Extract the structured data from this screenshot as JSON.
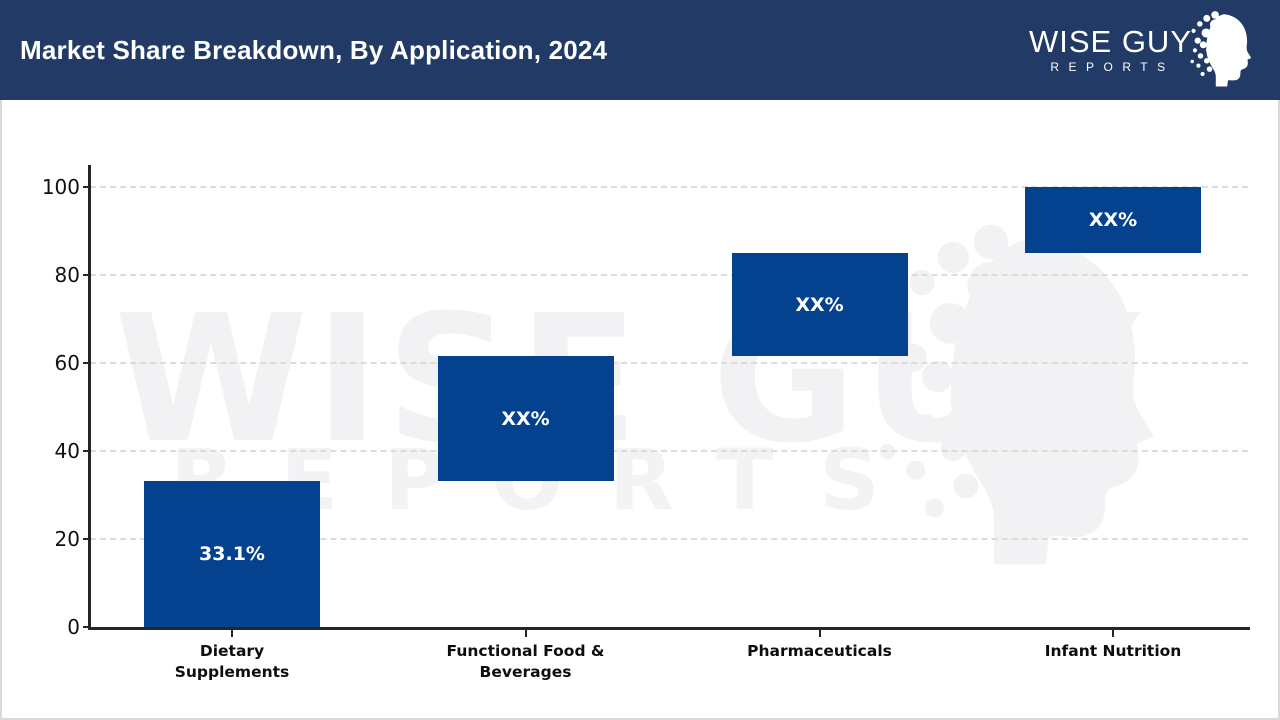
{
  "header": {
    "title": "Market Share Breakdown, By Application, 2024",
    "bg_color": "#213a66",
    "logo": {
      "name": "WISE GUY",
      "sub": "REPORTS"
    }
  },
  "watermark": {
    "line1": "WISE GUY",
    "line2": "REPORTS"
  },
  "chart_data": {
    "type": "bar",
    "subtype": "floating-segment-waterfall",
    "title": "Market Share Breakdown, By Application, 2024",
    "categories": [
      [
        "Dietary",
        "Supplements"
      ],
      [
        "Functional Food &",
        "Beverages"
      ],
      [
        "Pharmaceuticals"
      ],
      [
        "Infant Nutrition"
      ]
    ],
    "segments": [
      {
        "category": "Dietary Supplements",
        "start": 0,
        "end": 33.1,
        "label": "33.1%"
      },
      {
        "category": "Functional Food & Beverages",
        "start": 33.1,
        "end": 61.5,
        "label": "XX%"
      },
      {
        "category": "Pharmaceuticals",
        "start": 61.5,
        "end": 84.9,
        "label": "XX%"
      },
      {
        "category": "Infant Nutrition",
        "start": 84.9,
        "end": 100,
        "label": "XX%"
      }
    ],
    "yticks": [
      0,
      20,
      40,
      60,
      80,
      100
    ],
    "ylim": [
      0,
      105
    ],
    "xlabel": "",
    "ylabel": "",
    "bar_color": "#04428f",
    "bar_label_color": "#ffffff",
    "grid": {
      "axis": "y",
      "style": "dashed",
      "color": "#dcdcdc"
    },
    "legend": "none"
  }
}
